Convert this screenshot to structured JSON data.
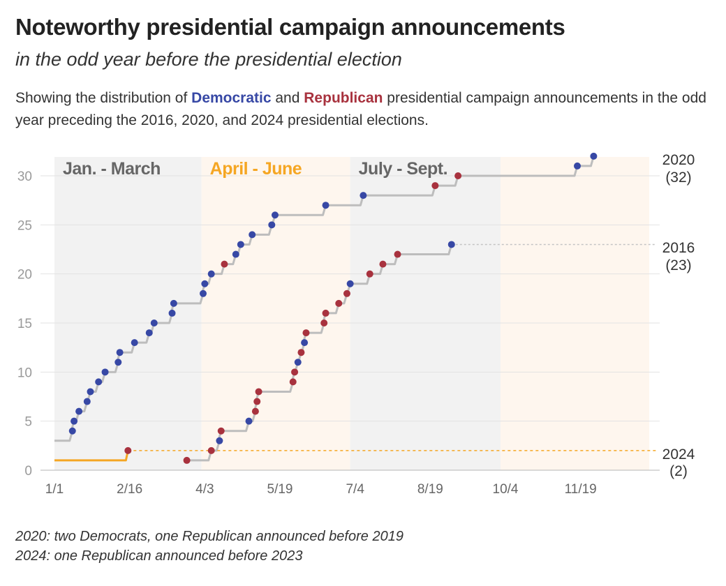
{
  "title": "Noteworthy presidential campaign announcements",
  "subtitle": "in the odd year before the presidential election",
  "description": {
    "part1": "Showing the distribution of ",
    "dem_word": "Democratic",
    "part2": " and ",
    "rep_word": "Republican",
    "part3": " presidential campaign announcements in the odd year preceding the 2016, 2020, and 2024 presidential elections."
  },
  "notes": [
    "2020: two Democrats, one Republican announced before 2019",
    "2024: one Republican announced before 2023"
  ],
  "colors": {
    "democratic": "#3748a5",
    "republican": "#a8323e",
    "step_line": "#bdbdbd",
    "line_2024": "#f5a623",
    "quarter_gray": "#f2f2f2",
    "quarter_cream": "#fef6ee"
  },
  "chart_data": {
    "type": "line",
    "xlim": [
      "1/1",
      "12/31"
    ],
    "ylim": [
      0,
      32
    ],
    "y_ticks": [
      0,
      5,
      10,
      15,
      20,
      25,
      30
    ],
    "x_ticks": [
      "1/1",
      "2/16",
      "4/3",
      "5/19",
      "7/4",
      "8/19",
      "10/4",
      "11/19"
    ],
    "grid": true,
    "quarters": [
      {
        "label": "Jan. - March",
        "start": "1/1",
        "end": "4/1",
        "label_color": "#666666",
        "fill": "gray"
      },
      {
        "label": "April - June",
        "start": "4/1",
        "end": "7/1",
        "label_color": "#f5a623",
        "fill": "cream"
      },
      {
        "label": "July - Sept.",
        "start": "7/1",
        "end": "10/1",
        "label_color": "#666666",
        "fill": "gray"
      },
      {
        "label": "",
        "start": "10/1",
        "end": "12/31",
        "label_color": "#666666",
        "fill": "cream"
      }
    ],
    "series": [
      {
        "name": "2020",
        "end_label": "2020",
        "count_label": "(32)",
        "start_count": 3,
        "final_count": 32,
        "line": "solid",
        "points": [
          {
            "x": "1/12",
            "y": 4,
            "party": "D"
          },
          {
            "x": "1/13",
            "y": 5,
            "party": "D"
          },
          {
            "x": "1/16",
            "y": 6,
            "party": "D"
          },
          {
            "x": "1/21",
            "y": 7,
            "party": "D"
          },
          {
            "x": "1/23",
            "y": 8,
            "party": "D"
          },
          {
            "x": "1/28",
            "y": 9,
            "party": "D"
          },
          {
            "x": "2/1",
            "y": 10,
            "party": "D"
          },
          {
            "x": "2/9",
            "y": 11,
            "party": "D"
          },
          {
            "x": "2/10",
            "y": 12,
            "party": "D"
          },
          {
            "x": "2/19",
            "y": 13,
            "party": "D"
          },
          {
            "x": "2/28",
            "y": 14,
            "party": "D"
          },
          {
            "x": "3/3",
            "y": 15,
            "party": "D"
          },
          {
            "x": "3/14",
            "y": 16,
            "party": "D"
          },
          {
            "x": "3/15",
            "y": 17,
            "party": "D"
          },
          {
            "x": "4/2",
            "y": 18,
            "party": "D"
          },
          {
            "x": "4/3",
            "y": 19,
            "party": "D"
          },
          {
            "x": "4/7",
            "y": 20,
            "party": "D"
          },
          {
            "x": "4/15",
            "y": 21,
            "party": "R"
          },
          {
            "x": "4/22",
            "y": 22,
            "party": "D"
          },
          {
            "x": "4/25",
            "y": 23,
            "party": "D"
          },
          {
            "x": "5/2",
            "y": 24,
            "party": "D"
          },
          {
            "x": "5/14",
            "y": 25,
            "party": "D"
          },
          {
            "x": "5/16",
            "y": 26,
            "party": "D"
          },
          {
            "x": "6/16",
            "y": 27,
            "party": "D"
          },
          {
            "x": "7/9",
            "y": 28,
            "party": "D"
          },
          {
            "x": "8/22",
            "y": 29,
            "party": "R"
          },
          {
            "x": "9/5",
            "y": 30,
            "party": "R"
          },
          {
            "x": "11/17",
            "y": 31,
            "party": "D"
          },
          {
            "x": "11/27",
            "y": 32,
            "party": "D"
          }
        ]
      },
      {
        "name": "2016",
        "end_label": "2016",
        "count_label": "(23)",
        "start_count": 0,
        "final_count": 23,
        "line": "solid",
        "points": [
          {
            "x": "3/23",
            "y": 1,
            "party": "R"
          },
          {
            "x": "4/7",
            "y": 2,
            "party": "R"
          },
          {
            "x": "4/12",
            "y": 3,
            "party": "D"
          },
          {
            "x": "4/13",
            "y": 4,
            "party": "R"
          },
          {
            "x": "4/30",
            "y": 5,
            "party": "D"
          },
          {
            "x": "5/4",
            "y": 6,
            "party": "R"
          },
          {
            "x": "5/5",
            "y": 7,
            "party": "R"
          },
          {
            "x": "5/6",
            "y": 8,
            "party": "R"
          },
          {
            "x": "5/27",
            "y": 9,
            "party": "R"
          },
          {
            "x": "5/28",
            "y": 10,
            "party": "R"
          },
          {
            "x": "5/30",
            "y": 11,
            "party": "D"
          },
          {
            "x": "6/1",
            "y": 12,
            "party": "R"
          },
          {
            "x": "6/3",
            "y": 13,
            "party": "D"
          },
          {
            "x": "6/4",
            "y": 14,
            "party": "R"
          },
          {
            "x": "6/15",
            "y": 15,
            "party": "R"
          },
          {
            "x": "6/16",
            "y": 16,
            "party": "R"
          },
          {
            "x": "6/24",
            "y": 17,
            "party": "R"
          },
          {
            "x": "6/29",
            "y": 18,
            "party": "R"
          },
          {
            "x": "7/1",
            "y": 19,
            "party": "D"
          },
          {
            "x": "7/13",
            "y": 20,
            "party": "R"
          },
          {
            "x": "7/21",
            "y": 21,
            "party": "R"
          },
          {
            "x": "7/30",
            "y": 22,
            "party": "R"
          },
          {
            "x": "9/1",
            "y": 23,
            "party": "D"
          }
        ]
      },
      {
        "name": "2024",
        "end_label": "2024",
        "count_label": "(2)",
        "start_count": 1,
        "final_count": 2,
        "line": "dashed",
        "points": [
          {
            "x": "2/15",
            "y": 2,
            "party": "R"
          }
        ]
      }
    ]
  }
}
